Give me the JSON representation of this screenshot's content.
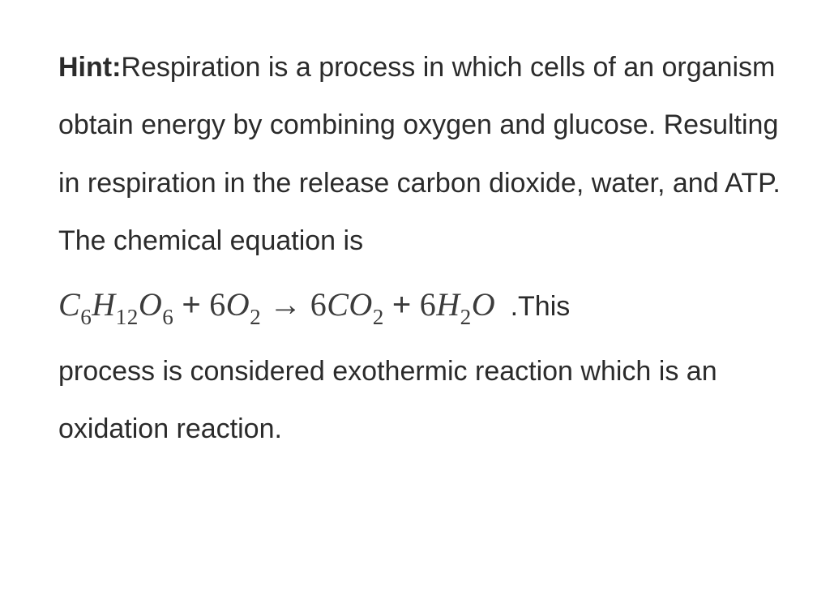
{
  "page": {
    "background_color": "#ffffff"
  },
  "hint": {
    "label": "Hint:",
    "body_part1": "Respiration is a process in which cells of an organism obtain energy by combining oxygen and glucose. Resulting in respiration in the release carbon dioxide, water, and ATP. The chemical equation is",
    "body_part2": "process is considered exothermic reaction which is an oxidation reaction.",
    "text_color": "#2b2b2b",
    "font_size_pt": 26,
    "line_height": 2.1,
    "label_weight": 700
  },
  "equation": {
    "terms": [
      {
        "coef": "",
        "formula": "C",
        "sub": "6"
      },
      {
        "coef": "",
        "formula": "H",
        "sub": "12"
      },
      {
        "coef": "",
        "formula": "O",
        "sub": "6"
      },
      {
        "op": "+"
      },
      {
        "coef": "6",
        "formula": "O",
        "sub": "2"
      },
      {
        "op": "→"
      },
      {
        "coef": "6",
        "formula": "C",
        "sub": ""
      },
      {
        "coef": "",
        "formula": "O",
        "sub": "2"
      },
      {
        "op": "+"
      },
      {
        "coef": "6",
        "formula": "H",
        "sub": "2"
      },
      {
        "coef": "",
        "formula": "O",
        "sub": ""
      }
    ],
    "trailing_text": " .This",
    "font_family": "Times New Roman",
    "font_size_pt": 30,
    "font_style": "italic",
    "text_color": "#3c3c3c",
    "subscript_scale": 0.68
  }
}
